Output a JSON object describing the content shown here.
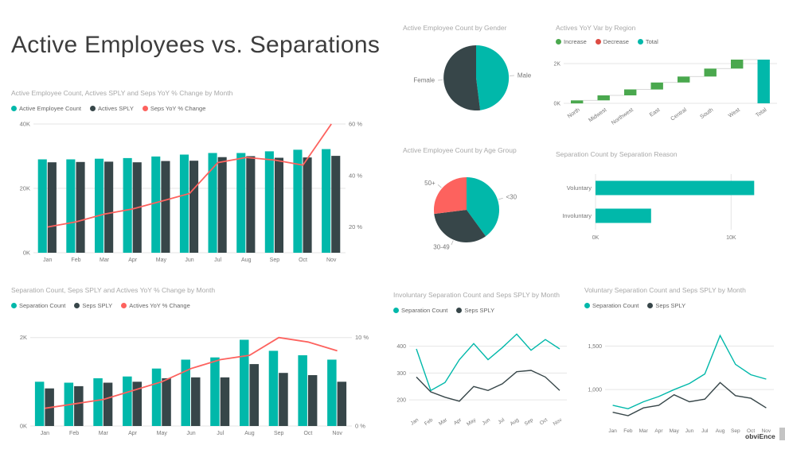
{
  "page": {
    "title": "Active Employees vs. Separations",
    "watermark": "obviEnce"
  },
  "colors": {
    "teal": "#01B8AA",
    "dark": "#374649",
    "coral": "#FD625E",
    "green": "#4AA84E",
    "red": "#DD4B43",
    "axis": "#777777",
    "grid": "#E6E6E6"
  },
  "chart_data": [
    {
      "type": "combo",
      "title": "Active Employee Count, Actives SPLY and Seps YoY % Change by Month",
      "categories": [
        "Jan",
        "Feb",
        "Mar",
        "Apr",
        "May",
        "Jun",
        "Jul",
        "Aug",
        "Sep",
        "Oct",
        "Nov"
      ],
      "legend": [
        {
          "label": "Active Employee Count",
          "color": "teal"
        },
        {
          "label": "Actives SPLY",
          "color": "dark"
        },
        {
          "label": "Seps YoY % Change",
          "color": "coral"
        }
      ],
      "bar_series": [
        {
          "name": "Active Employee Count",
          "color": "teal",
          "values": [
            29000,
            29000,
            29200,
            29400,
            29900,
            30500,
            31000,
            31000,
            31500,
            32000,
            32200
          ]
        },
        {
          "name": "Actives SPLY",
          "color": "dark",
          "values": [
            28100,
            28200,
            28300,
            28100,
            28500,
            28600,
            29700,
            30000,
            29500,
            29600,
            30100
          ]
        }
      ],
      "line_series": {
        "name": "Seps YoY % Change",
        "color": "coral",
        "values": [
          20,
          22,
          25,
          27,
          30,
          33,
          45,
          47,
          46,
          44,
          60
        ]
      },
      "y_left": {
        "min": 0,
        "max": 40000,
        "ticks": [
          {
            "v": 0,
            "label": "0K"
          },
          {
            "v": 20000,
            "label": "20K"
          },
          {
            "v": 40000,
            "label": "40K"
          }
        ]
      },
      "y_right": {
        "min": 10,
        "max": 60,
        "ticks": [
          {
            "v": 20,
            "label": "20 %"
          },
          {
            "v": 40,
            "label": "40 %"
          },
          {
            "v": 60,
            "label": "60 %"
          }
        ]
      }
    },
    {
      "type": "pie",
      "title": "Active Employee Count by Gender",
      "slices": [
        {
          "label": "Male",
          "color": "teal",
          "value": 48
        },
        {
          "label": "Female",
          "color": "dark",
          "value": 52
        }
      ]
    },
    {
      "type": "waterfall",
      "title": "Actives YoY Var by Region",
      "legend": [
        {
          "label": "Increase",
          "color": "green"
        },
        {
          "label": "Decrease",
          "color": "red"
        },
        {
          "label": "Total",
          "color": "teal"
        }
      ],
      "categories": [
        "North",
        "Midwest",
        "Northwest",
        "East",
        "Central",
        "South",
        "West",
        "Total"
      ],
      "increments": [
        150,
        250,
        300,
        350,
        300,
        400,
        450
      ],
      "total": 2200,
      "y_max": 2400,
      "y_ticks": [
        {
          "v": 0,
          "label": "0K"
        },
        {
          "v": 2000,
          "label": "2K"
        }
      ]
    },
    {
      "type": "pie",
      "title": "Active Employee Count by Age Group",
      "slices": [
        {
          "label": "<30",
          "color": "teal",
          "value": 40
        },
        {
          "label": "30-49",
          "color": "dark",
          "value": 33
        },
        {
          "label": "50+",
          "color": "coral",
          "value": 27
        }
      ]
    },
    {
      "type": "hbar",
      "title": "Separation Count by Separation Reason",
      "categories": [
        "Voluntary",
        "Involuntary"
      ],
      "values": [
        11700,
        4100
      ],
      "x_max": 12800,
      "x_ticks": [
        {
          "v": 0,
          "label": "0K"
        },
        {
          "v": 10000,
          "label": "10K"
        }
      ]
    },
    {
      "type": "combo",
      "title": "Separation Count, Seps SPLY and Actives YoY % Change by Month",
      "categories": [
        "Jan",
        "Feb",
        "Mar",
        "Apr",
        "May",
        "Jun",
        "Jul",
        "Aug",
        "Sep",
        "Oct",
        "Nov"
      ],
      "legend": [
        {
          "label": "Separation Count",
          "color": "teal"
        },
        {
          "label": "Seps SPLY",
          "color": "dark"
        },
        {
          "label": "Actives YoY % Change",
          "color": "coral"
        }
      ],
      "bar_series": [
        {
          "name": "Separation Count",
          "color": "teal",
          "values": [
            1000,
            980,
            1080,
            1120,
            1300,
            1500,
            1550,
            1950,
            1700,
            1600,
            1500
          ]
        },
        {
          "name": "Seps SPLY",
          "color": "dark",
          "values": [
            850,
            900,
            980,
            1000,
            1080,
            1100,
            1100,
            1400,
            1200,
            1150,
            1000
          ]
        }
      ],
      "line_series": {
        "name": "Actives YoY % Change",
        "color": "coral",
        "values": [
          2,
          2.5,
          3,
          4,
          5,
          6.5,
          7.5,
          8,
          10,
          9.5,
          8.5
        ]
      },
      "y_left": {
        "min": 0,
        "max": 2300,
        "ticks": [
          {
            "v": 0,
            "label": "0K"
          },
          {
            "v": 2000,
            "label": "2K"
          }
        ]
      },
      "y_right": {
        "min": 0,
        "max": 11.5,
        "ticks": [
          {
            "v": 0,
            "label": "0 %"
          },
          {
            "v": 10,
            "label": "10 %"
          }
        ]
      }
    },
    {
      "type": "lines",
      "title": "Involuntary Separation Count and Seps SPLY by Month",
      "categories": [
        "Jan",
        "Feb",
        "Mar",
        "Apr",
        "May",
        "Jun",
        "Jul",
        "Aug",
        "Sep",
        "Oct",
        "Nov"
      ],
      "legend": [
        {
          "label": "Separation Count",
          "color": "teal"
        },
        {
          "label": "Seps SPLY",
          "color": "dark"
        }
      ],
      "series": [
        {
          "name": "Separation Count",
          "color": "teal",
          "values": [
            390,
            235,
            265,
            350,
            410,
            350,
            395,
            445,
            385,
            425,
            390
          ]
        },
        {
          "name": "Seps SPLY",
          "color": "dark",
          "values": [
            285,
            230,
            210,
            195,
            250,
            235,
            260,
            305,
            310,
            285,
            235
          ]
        }
      ],
      "y_min": 150,
      "y_max": 470,
      "y_ticks": [
        {
          "v": 200,
          "label": "200"
        },
        {
          "v": 300,
          "label": "300"
        },
        {
          "v": 400,
          "label": "400"
        }
      ],
      "rotate_labels": true
    },
    {
      "type": "lines",
      "title": "Voluntary Separation Count and Seps SPLY by Month",
      "categories": [
        "Jan",
        "Feb",
        "Mar",
        "Apr",
        "May",
        "Jun",
        "Jul",
        "Aug",
        "Sep",
        "Oct",
        "Nov"
      ],
      "legend": [
        {
          "label": "Separation Count",
          "color": "teal"
        },
        {
          "label": "Seps SPLY",
          "color": "dark"
        }
      ],
      "series": [
        {
          "name": "Separation Count",
          "color": "teal",
          "values": [
            820,
            780,
            860,
            920,
            1000,
            1070,
            1180,
            1620,
            1290,
            1170,
            1120
          ]
        },
        {
          "name": "Seps SPLY",
          "color": "dark",
          "values": [
            740,
            700,
            790,
            820,
            940,
            860,
            890,
            1080,
            930,
            900,
            790
          ]
        }
      ],
      "y_min": 600,
      "y_max": 1750,
      "y_ticks": [
        {
          "v": 1000,
          "label": "1,000"
        },
        {
          "v": 1500,
          "label": "1,500"
        }
      ],
      "rotate_labels": false
    }
  ]
}
